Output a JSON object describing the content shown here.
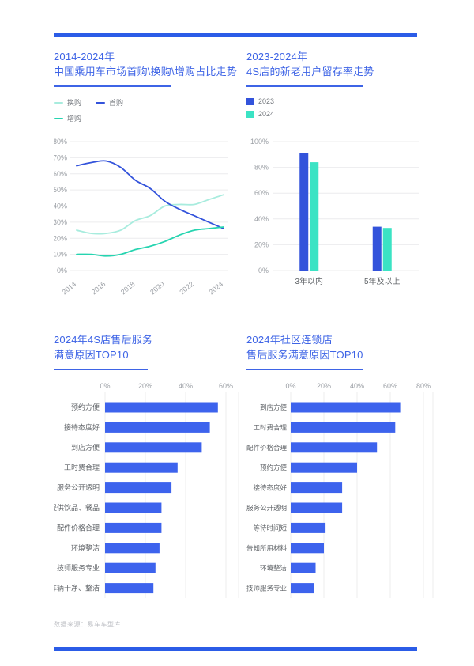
{
  "page": {
    "accent_color": "#2B5CE7",
    "title_color": "#3E64E6",
    "footer_source": "数据来源：易车车型库"
  },
  "chart_data": [
    {
      "id": "purchase-mix-trend",
      "type": "line",
      "title_lines": [
        "2014-2024年",
        "中国乘用车市场首购\\换购\\增购占比走势"
      ],
      "x": [
        2014,
        2015,
        2016,
        2017,
        2018,
        2019,
        2020,
        2021,
        2022,
        2023,
        2024
      ],
      "xticks": [
        2014,
        2016,
        2018,
        2020,
        2022,
        2024
      ],
      "ylim": [
        0,
        80
      ],
      "ytick_step": 10,
      "grid": true,
      "legend_position": "top-left",
      "series": [
        {
          "name": "换购",
          "color": "#A8ECDE",
          "values": [
            25,
            23,
            23,
            25,
            31,
            34,
            40,
            41,
            41,
            44,
            47
          ]
        },
        {
          "name": "首购",
          "color": "#3353DB",
          "values": [
            65,
            67,
            68,
            64,
            56,
            51,
            43,
            38,
            34,
            30,
            26
          ]
        },
        {
          "name": "增购",
          "color": "#26D4B0",
          "values": [
            10,
            10,
            9,
            10,
            13,
            15,
            18,
            22,
            25,
            26,
            27
          ]
        }
      ]
    },
    {
      "id": "retention-rate",
      "type": "bar",
      "title_lines": [
        "2023-2024年",
        "4S店的新老用户留存率走势"
      ],
      "categories": [
        "3年以内",
        "5年及以上"
      ],
      "ylim": [
        0,
        100
      ],
      "ytick_step": 20,
      "grid": true,
      "legend_position": "top-left",
      "series": [
        {
          "name": "2023",
          "color": "#3353DB",
          "values": [
            91,
            34
          ]
        },
        {
          "name": "2024",
          "color": "#3BE3C4",
          "values": [
            84,
            33
          ]
        }
      ]
    },
    {
      "id": "4s-aftersales-satisfaction-top10",
      "type": "hbar",
      "title_lines": [
        "2024年4S店售后服务",
        "满意原因TOP10"
      ],
      "categories": [
        "预约方便",
        "接待态度好",
        "到店方便",
        "工时费合理",
        "服务公开透明",
        "提供饮品、餐品",
        "配件价格合理",
        "环境整洁",
        "技师服务专业",
        "车辆干净、整洁"
      ],
      "values": [
        56,
        52,
        48,
        36,
        33,
        28,
        28,
        27,
        25,
        24
      ],
      "xticks": [
        0,
        20,
        40,
        60
      ],
      "xlim": [
        0,
        66
      ],
      "color": "#3D63ED"
    },
    {
      "id": "community-chain-satisfaction-top10",
      "type": "hbar",
      "title_lines": [
        "2024年社区连锁店",
        "售后服务满意原因TOP10"
      ],
      "categories": [
        "到店方便",
        "工时费合理",
        "配件价格合理",
        "预约方便",
        "接待态度好",
        "服务公开透明",
        "等待时间短",
        "告知所用材料",
        "环境整洁",
        "技师服务专业"
      ],
      "values": [
        66,
        63,
        52,
        40,
        31,
        31,
        21,
        20,
        15,
        14
      ],
      "xticks": [
        0,
        20,
        40,
        60,
        80
      ],
      "xlim": [
        0,
        86
      ],
      "color": "#3D63ED"
    }
  ]
}
